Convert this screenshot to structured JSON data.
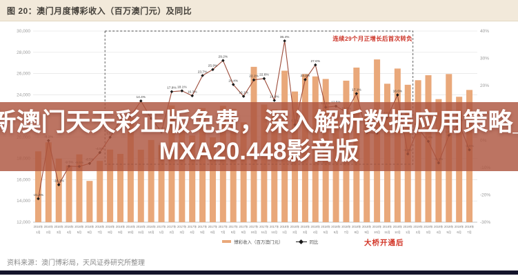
{
  "figure": {
    "title": "图 20：澳门月度博彩收入（百万澳门元）及同比"
  },
  "overlay": {
    "line1": "新澳门天天彩正版免费，深入解析数据应用策略_",
    "line2": "MXA20.448影音版"
  },
  "annotation": {
    "text": "连续29个月正增长后首次转负"
  },
  "bridge_note": "大桥开通后",
  "legend": {
    "bars": "博彩收入（百万澳门元）",
    "line": "同比"
  },
  "source": "资料来源：澳门博彩局，天风证券研究所整理",
  "colors": {
    "bar": "#E9A87A",
    "line": "#9C4A38",
    "marker": "#1A1A1A",
    "grid": "#E7E7E7",
    "axis_text": "#999999",
    "x_text": "#7A7A7A",
    "point_label": "#3A3A3A",
    "box_stroke": "#4A4A4A",
    "accent_red": "#CC3327",
    "banner": "rgba(173,85,64,0.82)",
    "title_bg": "#F2E9DA",
    "bottom_bar": "#14142B"
  },
  "chart_data": {
    "type": "bar",
    "title": "澳门月度博彩收入（百万澳门元）及同比",
    "categories": [
      "2016年1月",
      "2016年2月",
      "2016年3月",
      "2016年4月",
      "2016年5月",
      "2016年6月",
      "2016年7月",
      "2016年8月",
      "2016年9月",
      "2016年10月",
      "2016年11月",
      "2016年12月",
      "2017年1月",
      "2017年2月",
      "2017年3月",
      "2017年4月",
      "2017年5月",
      "2017年6月",
      "2017年7月",
      "2017年8月",
      "2017年9月",
      "2017年10月",
      "2017年11月",
      "2017年12月",
      "2018年1月",
      "2018年2月",
      "2018年3月",
      "2018年4月",
      "2018年5月",
      "2018年6月",
      "2018年7月",
      "2018年8月",
      "2018年9月",
      "2018年10月",
      "2018年11月",
      "2018年12月",
      "2019年1月",
      "2019年2月",
      "2019年3月",
      "2019年4月",
      "2019年5月",
      "2019年6月",
      "2019年7月"
    ],
    "series": [
      {
        "name": "博彩收入（百万澳门元）",
        "type": "bar",
        "axis": "left",
        "values": [
          18674,
          19521,
          17980,
          17340,
          18389,
          15885,
          17771,
          18837,
          18435,
          21818,
          18826,
          19743,
          19255,
          22992,
          21233,
          20164,
          22743,
          19992,
          22964,
          22676,
          21408,
          26630,
          23078,
          22625,
          26265,
          24307,
          25952,
          25727,
          25488,
          22490,
          25327,
          26560,
          21952,
          27328,
          25039,
          26468,
          24942,
          25370,
          25840,
          23588,
          25952,
          23812,
          24453
        ]
      },
      {
        "name": "同比",
        "type": "line",
        "axis": "right",
        "values": [
          -21.4,
          -0.1,
          -16.3,
          -9.5,
          -9.6,
          -8.5,
          -4.5,
          1.1,
          7.4,
          8.8,
          14.4,
          8.0,
          3.1,
          17.8,
          18.1,
          16.3,
          23.7,
          25.9,
          29.2,
          20.4,
          16.1,
          22.1,
          22.6,
          14.6,
          36.4,
          5.7,
          22.2,
          27.6,
          12.1,
          12.5,
          10.3,
          17.1,
          2.8,
          2.6,
          8.5,
          16.6,
          -5.0,
          4.4,
          -0.4,
          -8.3,
          1.8,
          5.9,
          -3.5
        ]
      }
    ],
    "left_axis": {
      "min": 12000,
      "max": 30000,
      "step": 2000,
      "ticks": [
        "30,000",
        "28,000",
        "26,000",
        "24,000",
        "22,000",
        "20,000",
        "18,000",
        "16,000",
        "14,000",
        "12,000"
      ]
    },
    "right_axis": {
      "min": -30,
      "max": 40,
      "step": 10,
      "ticks": [
        "40%",
        "30%",
        "20%",
        "10%",
        "0%",
        "-10%",
        "-20%",
        "-30%"
      ]
    },
    "grid": true,
    "legend_position": "bottom",
    "highlight_box": {
      "label": "连续29个月正增长后首次转负",
      "from": "2016年8月",
      "to": "2019年1月"
    }
  }
}
